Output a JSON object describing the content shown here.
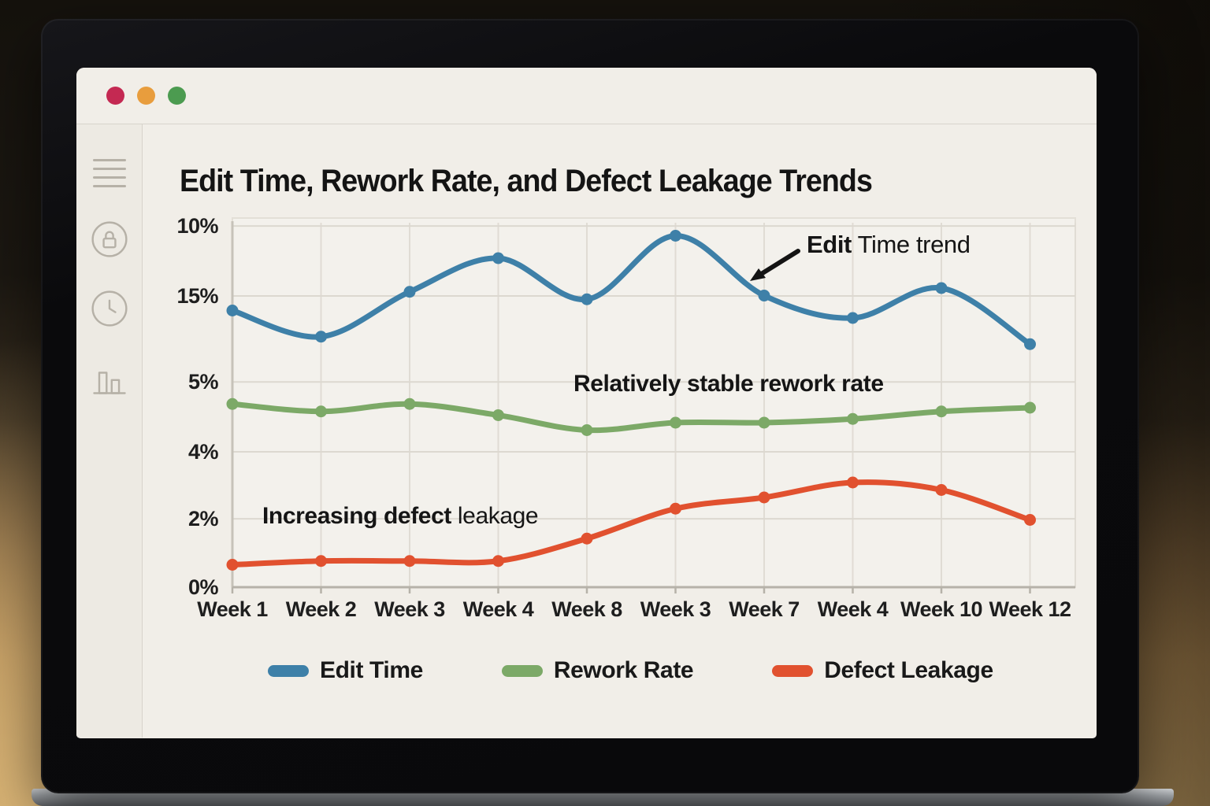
{
  "window": {
    "traffic_lights": [
      {
        "name": "close",
        "color": "#c42952"
      },
      {
        "name": "minimize",
        "color": "#e89d3d"
      },
      {
        "name": "zoom",
        "color": "#4c9b50"
      }
    ]
  },
  "sidebar": {
    "icons": [
      "menu-icon",
      "lock-icon",
      "clock-icon",
      "bar-chart-icon"
    ]
  },
  "chart_data": {
    "type": "line",
    "title": "Edit Time, Rework Rate, and Defect Leakage Trends",
    "xlabel": "",
    "ylabel": "",
    "grid": true,
    "legend_position": "bottom",
    "categories": [
      "Week 1",
      "Week 2",
      "Week 3",
      "Week 4",
      "Week 8",
      "Week 3",
      "Week 7",
      "Week 4",
      "Week 10",
      "Week 12"
    ],
    "y_ticks": [
      {
        "label": "10%",
        "value": 96.6
      },
      {
        "label": "15%",
        "value": 77.9
      },
      {
        "label": "5%",
        "value": 54.9
      },
      {
        "label": "4%",
        "value": 36.2
      },
      {
        "label": "2%",
        "value": 18.3
      },
      {
        "label": "0%",
        "value": 0
      }
    ],
    "ylim": [
      0,
      100
    ],
    "series": [
      {
        "name": "Edit Time",
        "color": "#3e80a8",
        "values": [
          74,
          67,
          79,
          88,
          77,
          94,
          78,
          72,
          80,
          65
        ]
      },
      {
        "name": "Rework Rate",
        "color": "#7ca967",
        "values": [
          49,
          47,
          49,
          46,
          42,
          44,
          44,
          45,
          47,
          48
        ]
      },
      {
        "name": "Defect Leakage",
        "color": "#e1512f",
        "values": [
          6,
          7,
          7,
          7,
          13,
          21,
          24,
          28,
          26,
          18
        ]
      }
    ],
    "annotations": [
      {
        "bold": "Edit",
        "rest": " Time trend"
      },
      {
        "bold": "Relatively stable rework rate",
        "rest": ""
      },
      {
        "bold": "Increasing defect",
        "rest": " leakage"
      }
    ]
  }
}
